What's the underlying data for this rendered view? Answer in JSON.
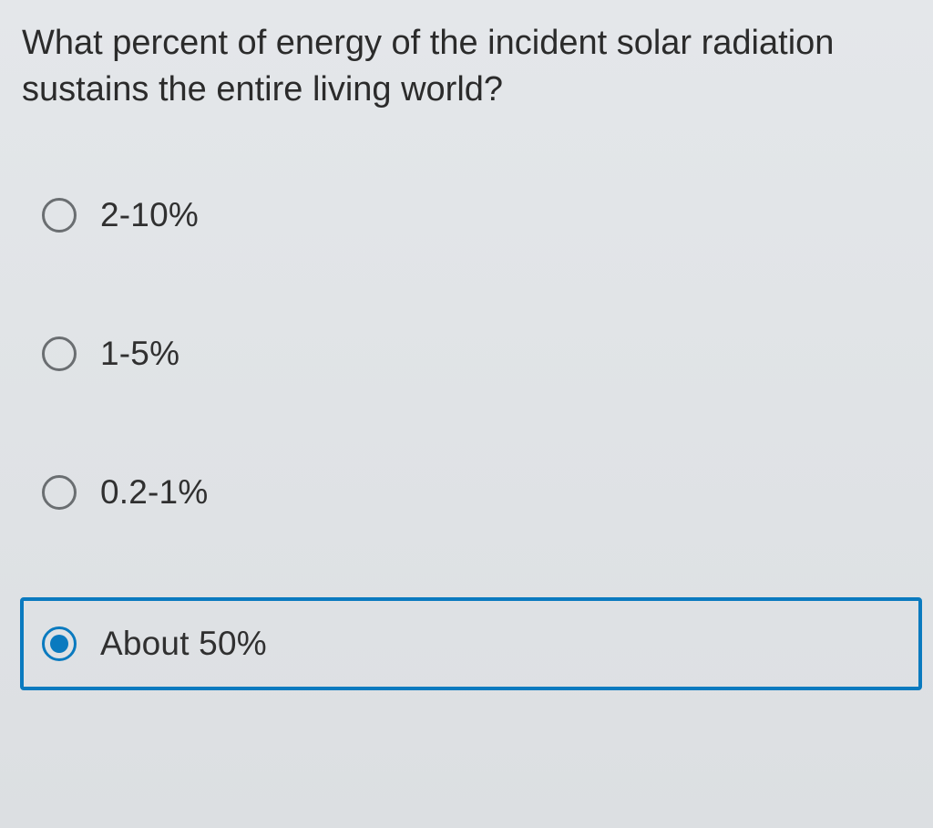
{
  "colors": {
    "accent": "#0a7abf",
    "text": "#2b2b2b",
    "radio_border": "#6a6e71",
    "background_top": "#e4e7ea",
    "background_bottom": "#dcdfe2"
  },
  "question": {
    "text": "What percent of energy of the incident solar radiation sustains the entire living world?",
    "fontsize": 38
  },
  "options": [
    {
      "label": "2-10%",
      "selected": false
    },
    {
      "label": "1-5%",
      "selected": false
    },
    {
      "label": "0.2-1%",
      "selected": false
    },
    {
      "label": "About 50%",
      "selected": true
    }
  ]
}
